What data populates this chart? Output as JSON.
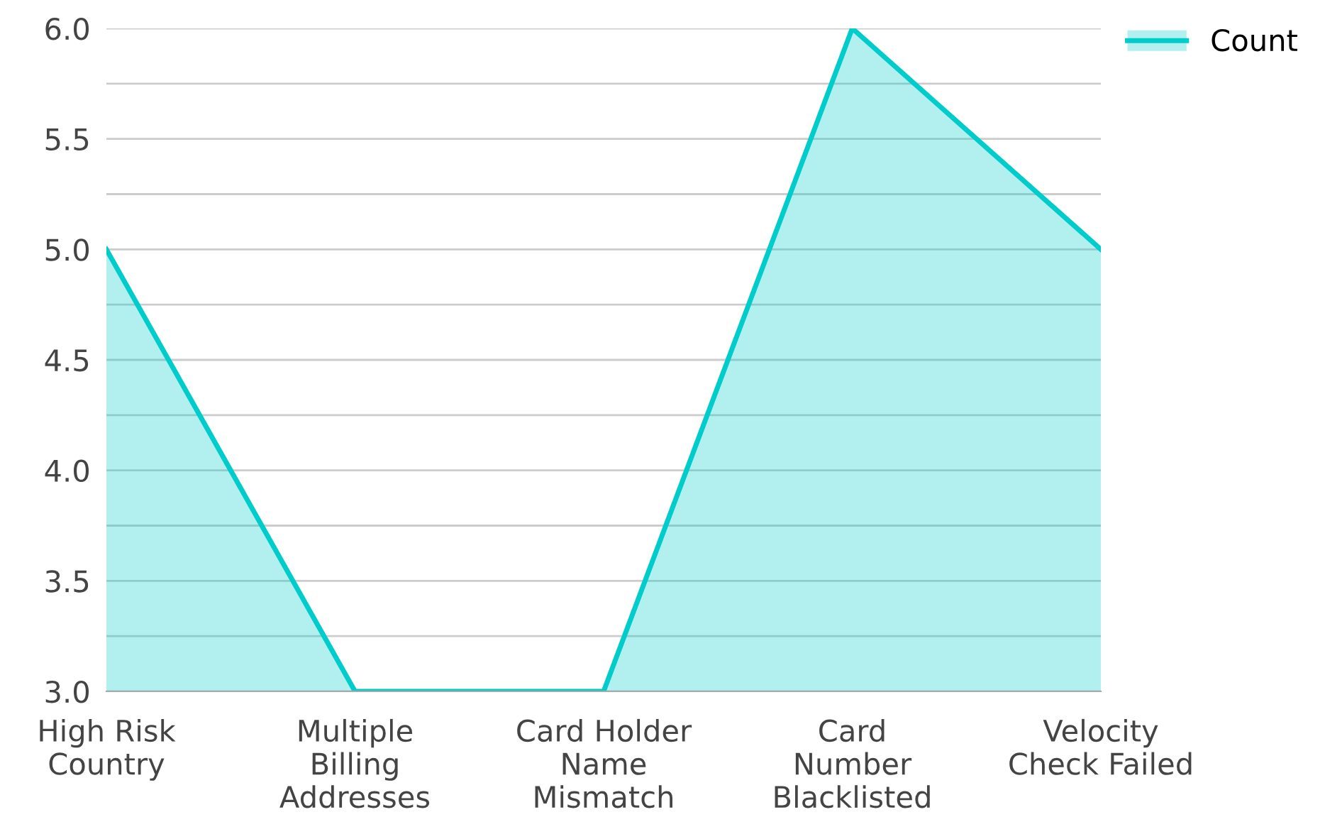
{
  "chart_data": {
    "type": "area",
    "categories": [
      "High Risk\nCountry",
      "Multiple\nBilling\nAddresses",
      "Card Holder\nName\nMismatch",
      "Card\nNumber\nBlacklisted",
      "Velocity\nCheck Failed"
    ],
    "series": [
      {
        "name": "Count",
        "color": "#00cccc",
        "values": [
          5,
          3,
          3,
          6,
          5
        ]
      }
    ],
    "ylim": [
      3,
      6
    ],
    "yticks": [
      {
        "value": 3,
        "label": "3.0"
      },
      {
        "value": 3.25,
        "label": null
      },
      {
        "value": 3.5,
        "label": "3.5"
      },
      {
        "value": 3.75,
        "label": null
      },
      {
        "value": 4,
        "label": "4.0"
      },
      {
        "value": 4.25,
        "label": null
      },
      {
        "value": 4.5,
        "label": "4.5"
      },
      {
        "value": 4.75,
        "label": null
      },
      {
        "value": 5,
        "label": "5.0"
      },
      {
        "value": 5.25,
        "label": null
      },
      {
        "value": 5.5,
        "label": "5.5"
      },
      {
        "value": 5.75,
        "label": null
      },
      {
        "value": 6,
        "label": "6.0"
      }
    ],
    "grid": "y",
    "legend": "top right"
  }
}
